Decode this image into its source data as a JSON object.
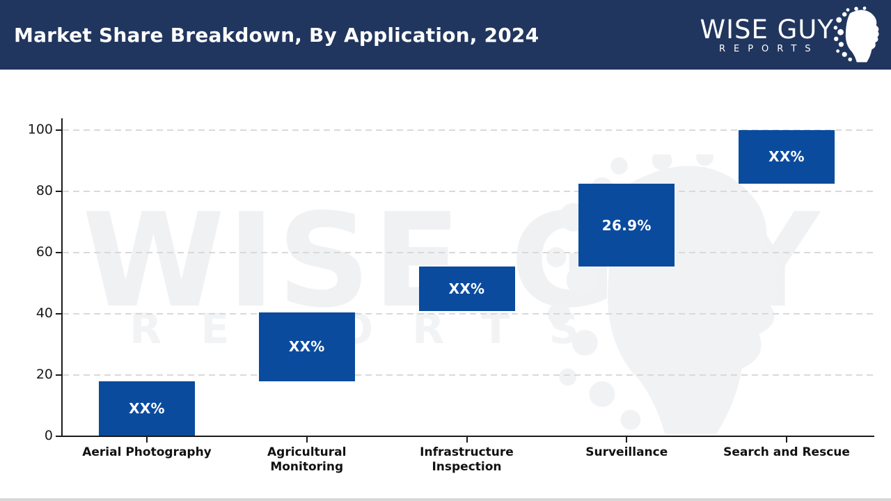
{
  "header": {
    "title": "Market Share Breakdown, By Application, 2024",
    "logo_line1": "WISE GUY",
    "logo_line2": "REPORTS"
  },
  "watermark": {
    "line1": "WISE GUY",
    "line2": "REPORTS"
  },
  "colors": {
    "header_bg": "#21365e",
    "bar_blue": "#0a4b9e",
    "axis": "#1a1a1a",
    "gridline": "#d9d9d9",
    "watermark_grey": "#f0f1f3",
    "bottom_strip": "#d8d8d8",
    "bar_label_text": "#ffffff",
    "title_text": "#ffffff"
  },
  "chart_data": {
    "type": "bar",
    "subtype": "waterfall",
    "title": "Market Share Breakdown, By Application, 2024",
    "categories": [
      "Aerial Photography",
      "Agricultural Monitoring",
      "Infrastructure Inspection",
      "Surveillance",
      "Search and Rescue"
    ],
    "category_label_lines": [
      [
        "Aerial Photography"
      ],
      [
        "Agricultural",
        "Monitoring"
      ],
      [
        "Infrastructure",
        "Inspection"
      ],
      [
        "Surveillance"
      ],
      [
        "Search and Rescue"
      ]
    ],
    "segments": [
      {
        "category": "Aerial Photography",
        "start": 0,
        "end": 18,
        "value": 18,
        "label": "XX%"
      },
      {
        "category": "Agricultural Monitoring",
        "start": 18,
        "end": 40.5,
        "value": 22.5,
        "label": "XX%"
      },
      {
        "category": "Infrastructure Inspection",
        "start": 41,
        "end": 55.5,
        "value": 14.5,
        "label": "XX%"
      },
      {
        "category": "Surveillance",
        "start": 55.5,
        "end": 82.4,
        "value": 26.9,
        "label": "26.9%"
      },
      {
        "category": "Search and Rescue",
        "start": 82.6,
        "end": 100,
        "value": 17.4,
        "label": "XX%"
      }
    ],
    "xlabel": "",
    "ylabel": "",
    "yticks": [
      0,
      20,
      40,
      60,
      80,
      100
    ],
    "ylim": [
      0,
      104
    ],
    "grid": "horizontal dashed",
    "legend": "none"
  }
}
